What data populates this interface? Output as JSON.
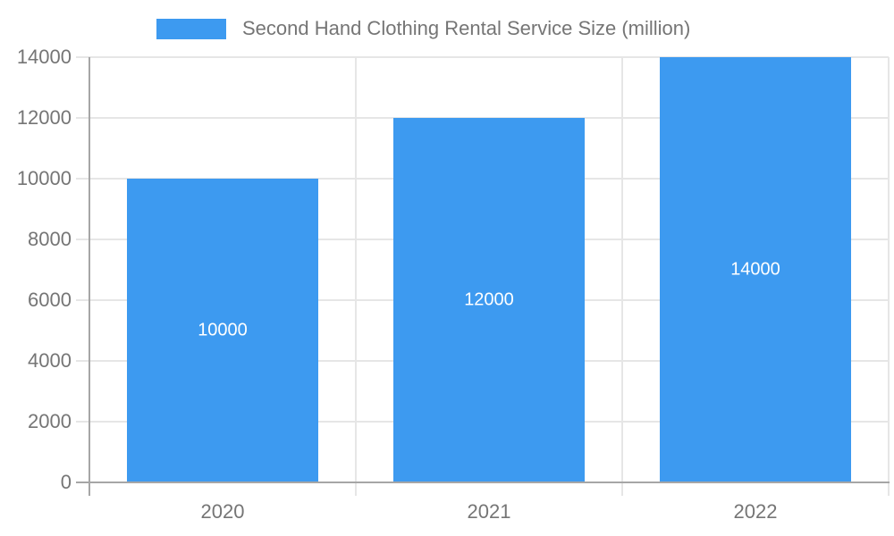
{
  "colors": {
    "bar": "#3D9AF0",
    "axis_line": "#a6a6a6",
    "gridline": "#e6e6e6",
    "tick_label": "#757575",
    "bar_value_label": "#ffffff",
    "background": "#ffffff"
  },
  "legend": {
    "label": "Second Hand Clothing Rental Service Size (million)"
  },
  "chart_data": {
    "type": "bar",
    "title": "Second Hand Clothing Rental Service Size (million)",
    "categories": [
      "2020",
      "2021",
      "2022"
    ],
    "values": [
      10000,
      12000,
      14000
    ],
    "bar_labels": [
      "10000",
      "12000",
      "14000"
    ],
    "xlabel": "",
    "ylabel": "",
    "ylim": [
      0,
      14000
    ],
    "yticks": [
      0,
      2000,
      4000,
      6000,
      8000,
      10000,
      12000,
      14000
    ],
    "ytick_labels": [
      "0",
      "2000",
      "4000",
      "6000",
      "8000",
      "10000",
      "12000",
      "14000"
    ],
    "grid": true,
    "legend_position": "top",
    "value_labels_position": "inside-center"
  }
}
